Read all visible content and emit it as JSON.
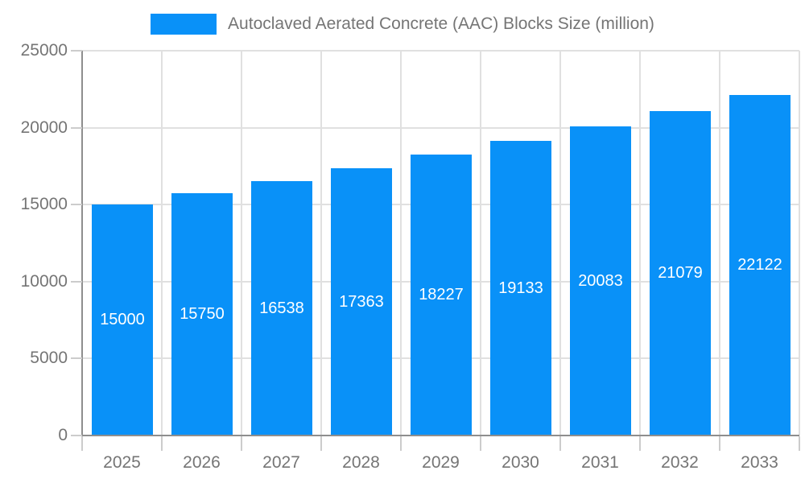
{
  "legend": {
    "label": "Autoclaved Aerated Concrete (AAC) Blocks Size (million)"
  },
  "chart_data": {
    "type": "bar",
    "title": "",
    "series_name": "Autoclaved Aerated Concrete (AAC) Blocks Size (million)",
    "categories": [
      "2025",
      "2026",
      "2027",
      "2028",
      "2029",
      "2030",
      "2031",
      "2032",
      "2033"
    ],
    "values": [
      15000,
      15750,
      16538,
      17363,
      18227,
      19133,
      20083,
      21079,
      22122
    ],
    "bar_labels": [
      "15000",
      "15750",
      "16538",
      "17363",
      "18227",
      "19133",
      "20083",
      "21079",
      "22122"
    ],
    "xlabel": "",
    "ylabel": "",
    "ylim": [
      0,
      25000
    ],
    "yticks": [
      0,
      5000,
      10000,
      15000,
      20000,
      25000
    ],
    "ytick_labels": [
      "0",
      "5000",
      "10000",
      "15000",
      "20000",
      "25000"
    ],
    "grid": true,
    "legend_position": "top",
    "colors": {
      "bar": "#0991f8",
      "bar_label_text": "#ffffff",
      "grid": "#e0e0e0",
      "axis": "#8e8e8e",
      "tick": "#cccccc",
      "tick_text": "#757575",
      "background": "#ffffff"
    }
  }
}
